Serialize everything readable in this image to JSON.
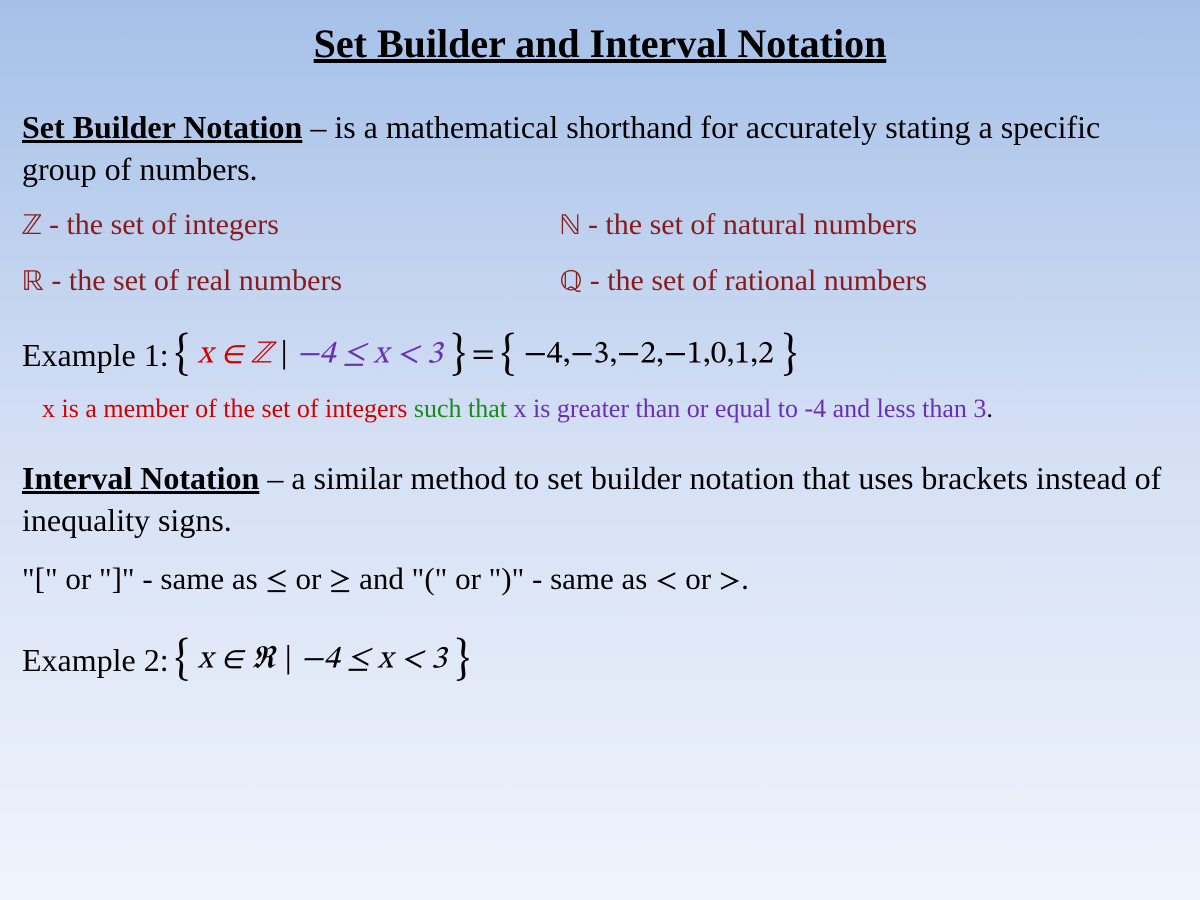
{
  "title": "Set Builder and Interval Notation",
  "setBuilder": {
    "term": "Set Builder Notation",
    "def": " – is a mathematical shorthand for accurately stating a specific group of numbers."
  },
  "sets": {
    "z": {
      "sym": "ℤ",
      "desc": " - the set of integers"
    },
    "n": {
      "sym": "ℕ",
      "desc": " - the set of natural numbers"
    },
    "r": {
      "sym": "ℝ",
      "desc": " - the set of real numbers"
    },
    "q": {
      "sym": "ℚ",
      "desc": " - the set of rational numbers"
    }
  },
  "ex1": {
    "label": "Example 1:",
    "lbrace": "{",
    "rbrace": "}",
    "xin": "x ∈ ℤ",
    "bar": "|",
    "cond": " −4 ≤ x < 3",
    "eq": " = ",
    "result": " −4,−3,−2,−1,0,1,2"
  },
  "desc": {
    "p1": "x is a member of the set of integers",
    "p2": " such that ",
    "p3": "x is greater than or equal to -4 and less than 3",
    "period": "."
  },
  "interval": {
    "term": "Interval Notation",
    "def": " – a similar method to set builder notation that uses brackets instead of inequality signs."
  },
  "brackets": {
    "text1": "\"[\" or  \"]\" - same as  ",
    "le": "≤",
    "text2": "  or  ",
    "ge": "≥",
    "text3": "  and  \"(\" or  \")\" - same as  ",
    "lt": "<",
    "text4": "  or  ",
    "gt": ">",
    "period": "."
  },
  "ex2": {
    "label": "Example 2:",
    "lbrace": "{",
    "rbrace": "}",
    "xin": "x ∈ ℜ",
    "bar": "|",
    "cond": " −4 ≤ x < 3"
  }
}
